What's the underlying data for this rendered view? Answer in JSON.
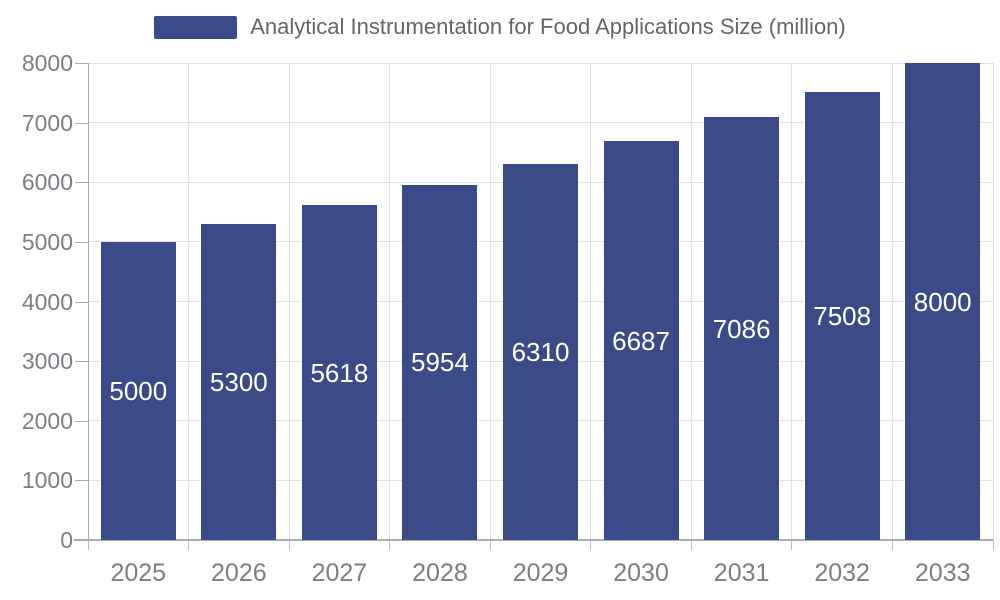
{
  "legend": {
    "items": [
      {
        "label": "Analytical Instrumentation for Food Applications Size (million)",
        "color": "#3A4B88"
      }
    ]
  },
  "chart_data": {
    "type": "bar",
    "title": "Analytical Instrumentation for Food Applications Size (million)",
    "categories": [
      "2025",
      "2026",
      "2027",
      "2028",
      "2029",
      "2030",
      "2031",
      "2032",
      "2033"
    ],
    "values": [
      5000,
      5300,
      5618,
      5954,
      6310,
      6687,
      7086,
      7508,
      8000
    ],
    "xlabel": "",
    "ylabel": "",
    "ylim": [
      0,
      8000
    ],
    "ytick_interval": 1000,
    "yticks": [
      0,
      1000,
      2000,
      3000,
      4000,
      5000,
      6000,
      7000,
      8000
    ],
    "grid": true,
    "value_labels_position": "inside-center",
    "legend_position": "top-center",
    "colors": {
      "bar": "#3A4B88",
      "value_label": "#FFFFFF",
      "axis_line": "#A9ABB4",
      "tick": "#B9BCC7",
      "gridline": "#E0E1E8",
      "axis_label": "#7B7E85",
      "legend_text": "#62656B",
      "background": "#FFFFFF"
    }
  }
}
